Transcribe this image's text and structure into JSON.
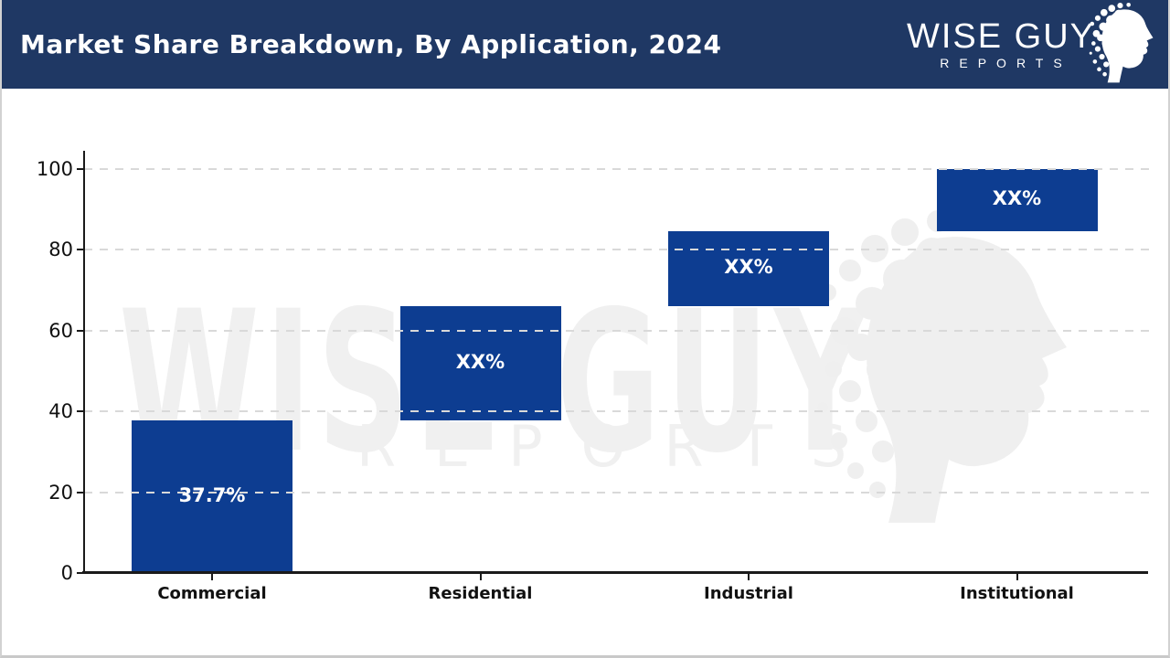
{
  "header": {
    "title": "Market Share Breakdown, By Application, 2024",
    "background_color": "#1f3864",
    "logo": {
      "line1": "WISE GUY",
      "line2": "REPORTS",
      "icon": "dotted-head-icon"
    }
  },
  "watermark": {
    "line1": "WISE GUY",
    "line2": "REPORTS",
    "icon": "dotted-head-icon"
  },
  "chart_data": {
    "type": "bar",
    "subtype": "floating-waterfall",
    "title": "Market Share Breakdown, By Application, 2024",
    "categories": [
      "Commercial",
      "Residential",
      "Industrial",
      "Institutional"
    ],
    "series": [
      {
        "name": "Market Share",
        "segments": [
          {
            "category": "Commercial",
            "start": 0,
            "end": 37.7,
            "label": "37.7%"
          },
          {
            "category": "Residential",
            "start": 37.7,
            "end": 66,
            "label": "XX%"
          },
          {
            "category": "Industrial",
            "start": 66,
            "end": 84.7,
            "label": "XX%"
          },
          {
            "category": "Institutional",
            "start": 84.7,
            "end": 100,
            "label": "XX%"
          }
        ]
      }
    ],
    "xlabel": "",
    "ylabel": "",
    "ylim": [
      0,
      100
    ],
    "y_ticks": [
      0,
      20,
      40,
      60,
      80,
      100
    ],
    "grid": "horizontal-dashed",
    "legend": "none",
    "bar_color": "#0d3d91",
    "bar_label_color": "#ffffff",
    "gridline_color": "#d9d9d9",
    "axis_color": "#1a1a1a"
  }
}
